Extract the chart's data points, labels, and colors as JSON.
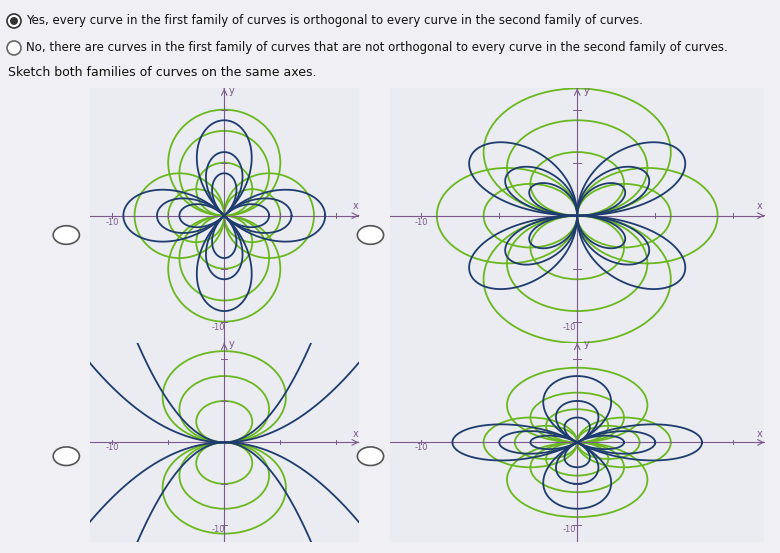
{
  "radio1_text": "Yes, every curve in the first family of curves is orthogonal to every curve in the second family of curves.",
  "radio2_text": "No, there are curves in the first family of curves that are not orthogonal to every curve in the second family of curves.",
  "sketch_text": "Sketch both families of curves on the same axes.",
  "green_color": "#6ab820",
  "blue_color": "#1e3c6e",
  "axis_color": "#7a5a8a",
  "bg_color": "#f0f0f4",
  "plot_bg": "#ebebf2",
  "text_color": "#111111"
}
